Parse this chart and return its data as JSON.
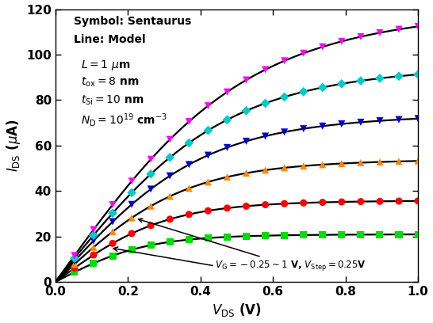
{
  "xlabel": "$V_{\\mathrm{DS}}$ (V)",
  "ylabel": "$I_{\\mathrm{DS}}$ ($\\mu$A)",
  "xlim": [
    0,
    1.0
  ],
  "ylim": [
    0,
    120
  ],
  "xticks": [
    0.0,
    0.2,
    0.4,
    0.6,
    0.8,
    1.0
  ],
  "yticks": [
    0,
    20,
    40,
    60,
    80,
    100,
    120
  ],
  "text1": "Symbol: Sentaurus",
  "text2": "Line: Model",
  "text3": "$L = 1$ $\\mu$m",
  "text4": "$t_{\\mathrm{ox}} = 8$ nm",
  "text5": "$t_{\\mathrm{Si}} = 10$ nm",
  "text6": "$N_{\\mathrm{D}} = 10^{19}$ cm$^{-3}$",
  "arrow_text": "$V_{\\mathrm{G}} = -0.25\\sim1$ V, $V_{\\mathrm{Step}} = 0.25$V",
  "colors": [
    "#00DD00",
    "#FF0000",
    "#FF8800",
    "#0000CC",
    "#00CCCC",
    "#FF00FF"
  ],
  "markers": [
    "s",
    "o",
    "^",
    "v",
    "D",
    "v"
  ],
  "Isat": [
    20.5,
    35.0,
    52.0,
    70.0,
    89.0,
    110.0
  ],
  "Vknee": [
    0.25,
    0.3,
    0.35,
    0.4,
    0.45,
    0.5
  ],
  "lambda_vals": [
    0.02,
    0.02,
    0.03,
    0.04,
    0.05,
    0.06
  ],
  "background_color": "#ffffff"
}
